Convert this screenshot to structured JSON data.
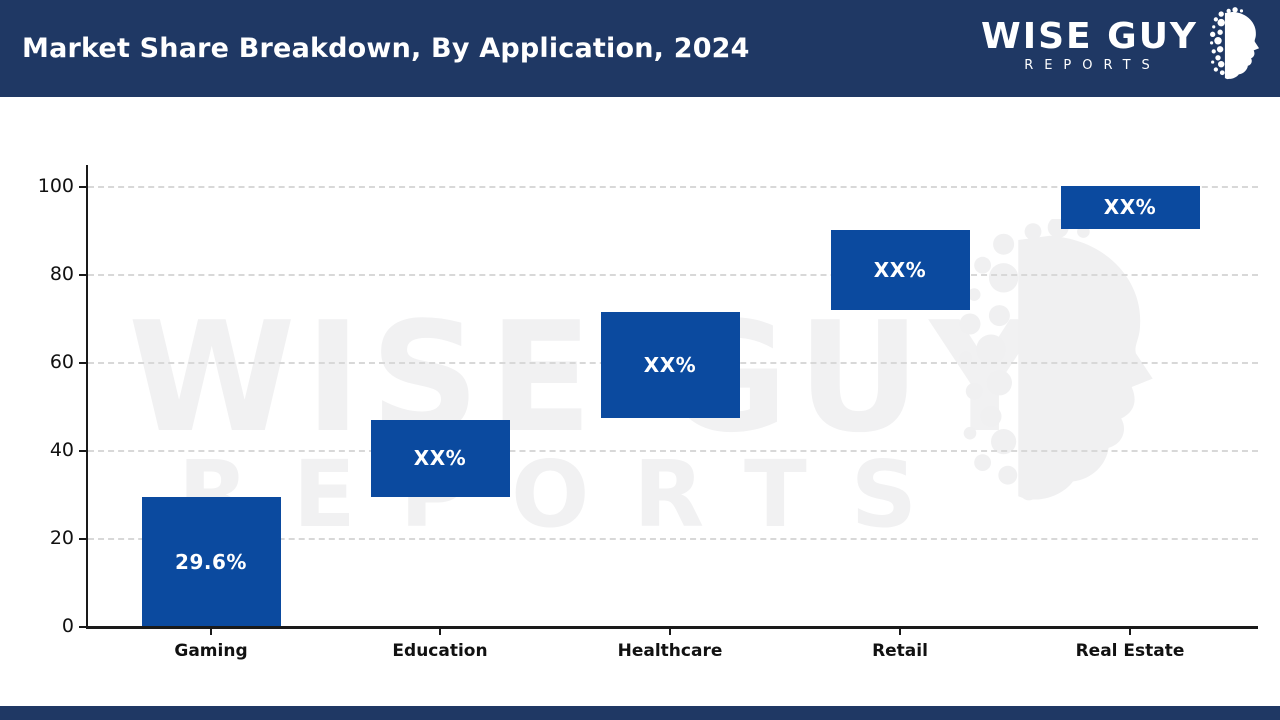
{
  "header": {
    "title": "Market Share Breakdown, By Application, 2024",
    "bg_color": "#1f3864",
    "logo": {
      "line1": "WISE GUY",
      "line2": "REPORTS"
    }
  },
  "watermark": {
    "line1": "WISE GUY",
    "line2": "REPORTS"
  },
  "chart_data": {
    "type": "bar",
    "subtype": "waterfall-floating-bars",
    "title": "Market Share Breakdown, By Application, 2024",
    "categories": [
      "Gaming",
      "Education",
      "Healthcare",
      "Retail",
      "Real Estate"
    ],
    "segments": [
      [
        0,
        29.6
      ],
      [
        29.6,
        47.0
      ],
      [
        47.5,
        71.6
      ],
      [
        72.0,
        90.3
      ],
      [
        90.5,
        100.2
      ]
    ],
    "values_pct": [
      29.6,
      17.4,
      24.1,
      18.3,
      9.7
    ],
    "bar_labels": [
      "29.6%",
      "XX%",
      "XX%",
      "XX%",
      "XX%"
    ],
    "yticks": [
      0,
      20,
      40,
      60,
      80,
      100
    ],
    "ylim": [
      0,
      104
    ],
    "xlabel": "",
    "ylabel": "",
    "grid": "horizontal-dashed",
    "legend": "none",
    "bar_color": "#0b4a9f",
    "bar_label_color": "#ffffff",
    "axis_color": "#1a1a1a"
  },
  "footer": {
    "bg_color": "#1f3864"
  }
}
